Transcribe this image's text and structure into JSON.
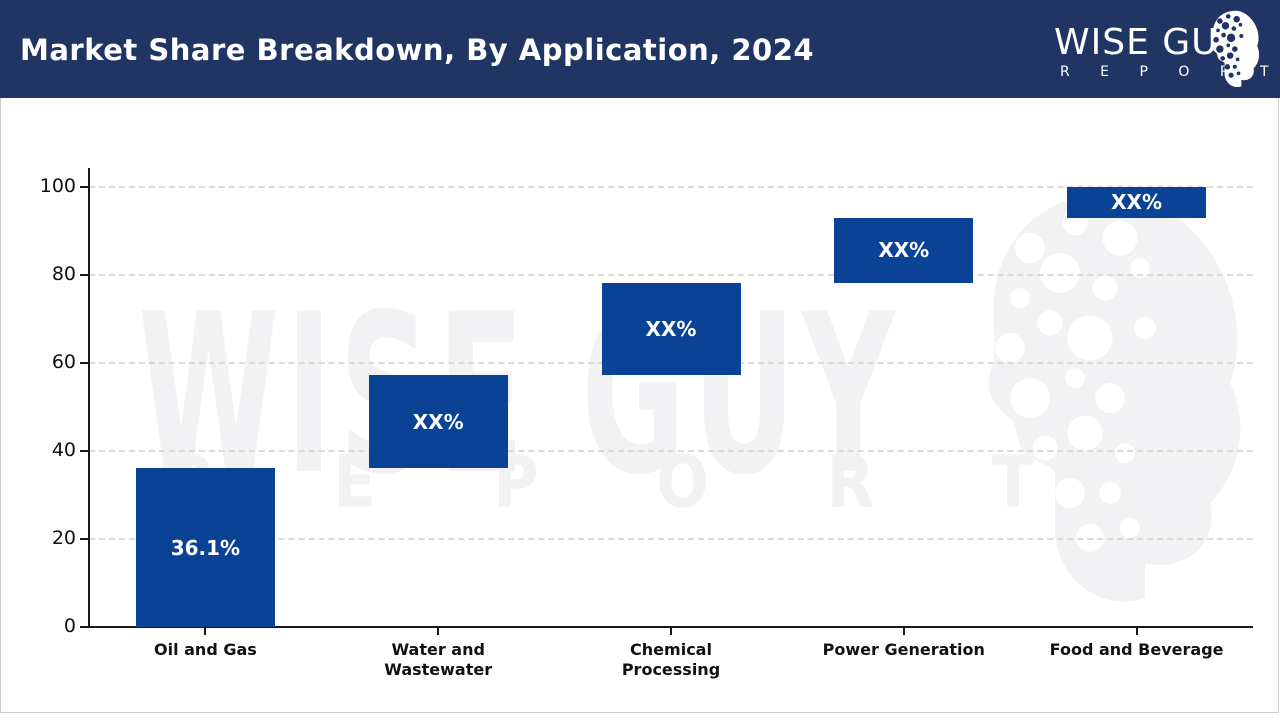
{
  "header": {
    "title": "Market Share Breakdown, By Application, 2024",
    "logo": {
      "line1": "WISE GUY",
      "line2": "REPORTS"
    }
  },
  "watermark": {
    "line1": "WISE GUY",
    "line2": "REPORTS"
  },
  "colors": {
    "header_bg": "#213564",
    "bar": "#0a4296",
    "bar_label_text": "#ffffff",
    "gridline": "#dadada",
    "axis": "#1a1a1a",
    "watermark": "#f2f2f4"
  },
  "chart_data": {
    "type": "bar",
    "subtype": "floating-waterfall",
    "title": "Market Share Breakdown, By Application, 2024",
    "xlabel": "",
    "ylabel": "",
    "categories": [
      "Oil and Gas",
      "Water and\nWastewater",
      "Chemical\nProcessing",
      "Power Generation",
      "Food and Beverage"
    ],
    "segments": [
      {
        "category": "Oil and Gas",
        "start": 0,
        "end": 36.1,
        "label": "36.1%"
      },
      {
        "category": "Water and Wastewater",
        "start": 36.1,
        "end": 57.3,
        "label": "XX%"
      },
      {
        "category": "Chemical Processing",
        "start": 57.3,
        "end": 78.2,
        "label": "XX%"
      },
      {
        "category": "Power Generation",
        "start": 78.2,
        "end": 93.0,
        "label": "XX%"
      },
      {
        "category": "Food and Beverage",
        "start": 93.0,
        "end": 100.0,
        "label": "XX%"
      }
    ],
    "yticks": [
      0,
      20,
      40,
      60,
      80,
      100
    ],
    "ylim": [
      0,
      104.3
    ],
    "grid": "horizontal-dashed",
    "legend": "none"
  }
}
